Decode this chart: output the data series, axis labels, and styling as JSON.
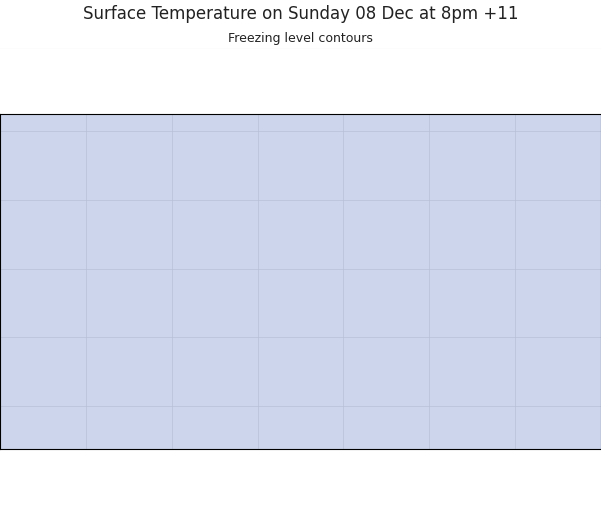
{
  "title": "Surface Temperature on Sunday 08 Dec at 8pm +11",
  "subtitle": "Freezing level contours",
  "title_fontsize": 12,
  "subtitle_fontsize": 9,
  "background_color": "#ffffff",
  "ocean_color": "#cdd5ec",
  "title_color": "#222222",
  "contour_color": "#ff0000",
  "contour_linewidth": 1.4,
  "contour_label_fontsize": 7,
  "grid_color": "#b8c0d8",
  "grid_linewidth": 0.5,
  "fig_width": 6.01,
  "fig_height": 5.14,
  "dpi": 100,
  "lon_min": 140.0,
  "lon_max": 175.0,
  "lat_min": -20.5,
  "lat_max": -1.0,
  "grid_lons": [
    145,
    150,
    155,
    160,
    165,
    170,
    175
  ],
  "grid_lats": [
    -18,
    -14,
    -10,
    -6,
    -2
  ],
  "title_box_color": "#f0f0f8"
}
